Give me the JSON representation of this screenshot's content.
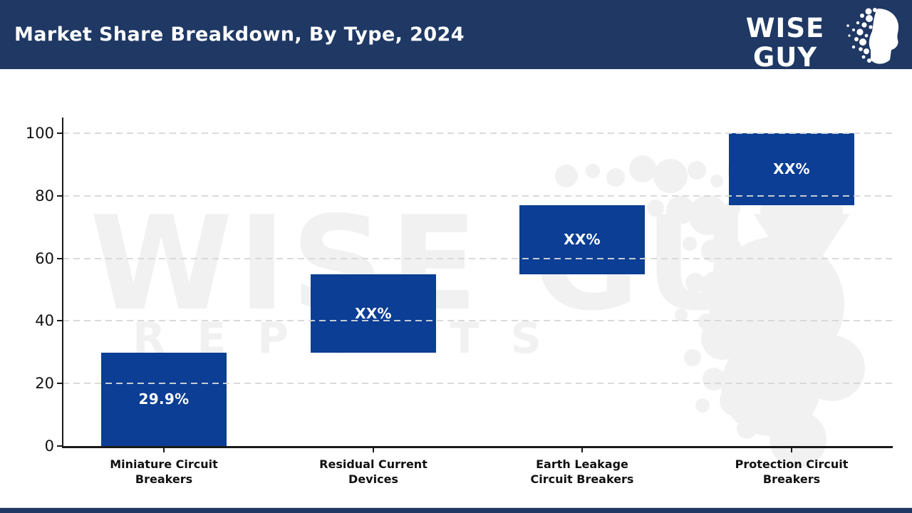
{
  "header": {
    "title": "Market Share Breakdown, By Type, 2024",
    "logo": {
      "line1": "WISE GUY",
      "line2": "REPORTS"
    }
  },
  "watermark": {
    "line1": "WISE GUY",
    "line2": "REPORTS"
  },
  "colors": {
    "header_bg": "#1f3864",
    "bar": "#0b3e94",
    "bar_label": "#ffffff",
    "gridline": "#d7d7d7",
    "axis": "#1a1a1a",
    "watermark": "#f1f1f2"
  },
  "chart_data": {
    "type": "bar",
    "subtype": "floating-waterfall",
    "title": "Market Share Breakdown, By Type, 2024",
    "categories": [
      "Miniature Circuit\nBreakers",
      "Residual Current\nDevices",
      "Earth Leakage\nCircuit Breakers",
      "Protection Circuit\nBreakers"
    ],
    "segments": [
      {
        "category": "Miniature Circuit Breakers",
        "label": "29.9%",
        "start": 0,
        "end": 29.9
      },
      {
        "category": "Residual Current Devices",
        "label": "XX%",
        "start": 29.9,
        "end": 55
      },
      {
        "category": "Earth Leakage Circuit Breakers",
        "label": "XX%",
        "start": 55,
        "end": 77
      },
      {
        "category": "Protection Circuit Breakers",
        "label": "XX%",
        "start": 77,
        "end": 100
      }
    ],
    "xlabel": "",
    "ylabel": "",
    "ylim": [
      0,
      100
    ],
    "yticks": [
      0,
      20,
      40,
      60,
      80,
      100
    ],
    "grid": "horizontal-dashed",
    "legend": "none"
  }
}
